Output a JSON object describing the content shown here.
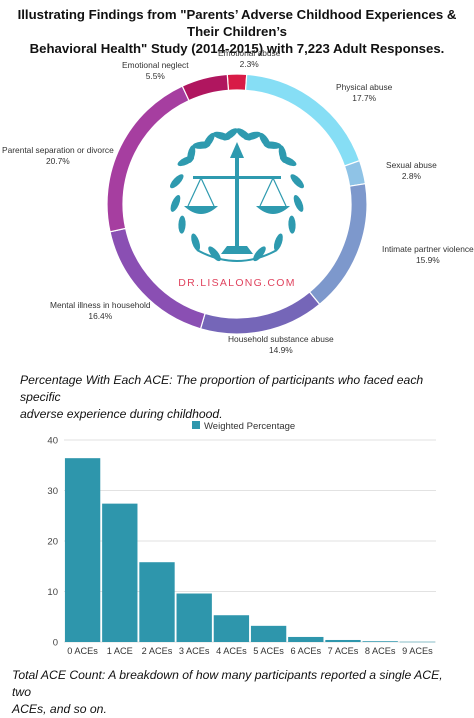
{
  "title_line1": "Illustrating Findings from \"Parents’ Adverse Childhood Experiences & Their Children’s",
  "title_line2": "Behavioral Health\" Study (2014-2015) with 7,223 Adult Responses.",
  "logo_text": "DR.LISALONG.COM",
  "caption1_line1": "Percentage With Each ACE: The proportion of participants who faced each specific",
  "caption1_line2": "adverse experience during childhood.",
  "caption2_line1": "Total ACE Count: A breakdown of how many participants reported a single ACE, two",
  "caption2_line2": "ACEs, and so on.",
  "chart_data": [
    {
      "type": "pie",
      "donut": true,
      "slices": [
        {
          "label": "Emotional abuse",
          "value": 2.3,
          "value_label": "2.3%",
          "color": "#d81b47"
        },
        {
          "label": "Physical abuse",
          "value": 17.7,
          "value_label": "17.7%",
          "color": "#86def5"
        },
        {
          "label": "Sexual abuse",
          "value": 2.8,
          "value_label": "2.8%",
          "color": "#8fc3e6"
        },
        {
          "label": "Intimate partner violence",
          "value": 15.9,
          "value_label": "15.9%",
          "color": "#7d98cc"
        },
        {
          "label": "Household substance abuse",
          "value": 14.9,
          "value_label": "14.9%",
          "color": "#7566b8"
        },
        {
          "label": "Mental illness in household",
          "value": 16.4,
          "value_label": "16.4%",
          "color": "#8a4fb3"
        },
        {
          "label": "Parental separation or divorce",
          "value": 20.7,
          "value_label": "20.7%",
          "color": "#a63ea0"
        },
        {
          "label": "Emotional neglect",
          "value": 5.5,
          "value_label": "5.5%",
          "color": "#b0165f"
        }
      ]
    },
    {
      "type": "bar",
      "legend": "Weighted Percentage",
      "legend_position": "top-center",
      "categories": [
        "0 ACEs",
        "1 ACE",
        "2 ACEs",
        "3 ACEs",
        "4 ACEs",
        "5 ACEs",
        "6 ACEs",
        "7 ACEs",
        "8 ACEs",
        "9 ACEs"
      ],
      "values": [
        36.4,
        27.4,
        15.8,
        9.6,
        5.3,
        3.2,
        1.0,
        0.4,
        0.15,
        0.05
      ],
      "yticks": [
        "0",
        "10",
        "20",
        "30",
        "40"
      ],
      "ylim": [
        0,
        40
      ],
      "grid": true,
      "color": "#2e96ac"
    }
  ]
}
